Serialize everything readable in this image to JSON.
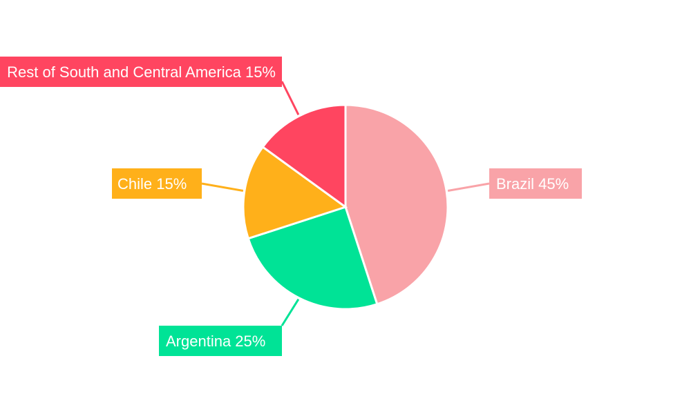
{
  "chart_data": {
    "type": "pie",
    "title": "",
    "start_angle_deg": 0,
    "direction": "clockwise",
    "slices": [
      {
        "name": "Brazil",
        "value": 45,
        "label": "Brazil 45%",
        "color": "#f9a3a8"
      },
      {
        "name": "Argentina",
        "value": 25,
        "label": "Argentina 25%",
        "color": "#00e396"
      },
      {
        "name": "Chile",
        "value": 15,
        "label": "Chile 15%",
        "color": "#ffb01a"
      },
      {
        "name": "Rest of South and Central America",
        "value": 15,
        "label": "Rest of South and Central America 15%",
        "color": "#ff4560"
      }
    ]
  }
}
